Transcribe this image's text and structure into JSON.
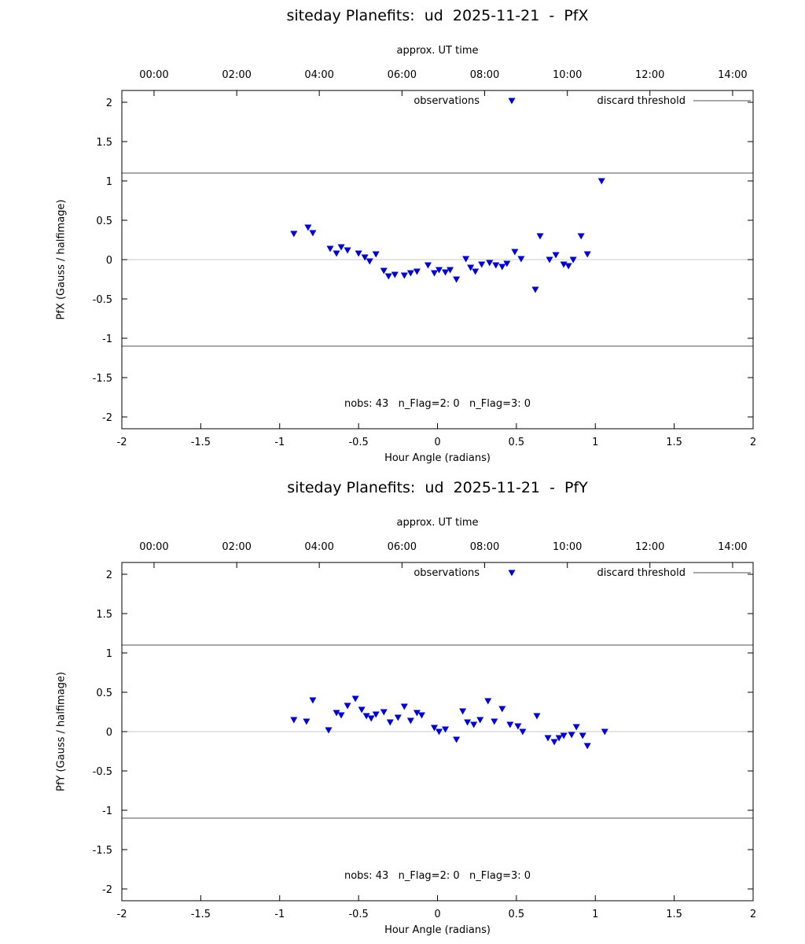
{
  "page": {
    "background": "#ffffff"
  },
  "chart_data": [
    {
      "type": "scatter",
      "title": "siteday Planefits:  ud  2025-11-21  -  PfX",
      "x2label": "approx. UT time",
      "xlabel": "Hour Angle (radians)",
      "ylabel": "PfX (Gauss / halfimage)",
      "xlim": [
        -2,
        2
      ],
      "ylim": [
        -2.15,
        2.15
      ],
      "x_ticks": [
        -2,
        -1.5,
        -1,
        -0.5,
        0,
        0.5,
        1,
        1.5,
        2
      ],
      "y_ticks": [
        -2,
        -1.5,
        -1,
        -0.5,
        0,
        0.5,
        1,
        1.5,
        2
      ],
      "ut_ticks": [
        {
          "label": "00:00",
          "ha": -1.796
        },
        {
          "label": "02:00",
          "ha": -1.272
        },
        {
          "label": "04:00",
          "ha": -0.749
        },
        {
          "label": "06:00",
          "ha": -0.225
        },
        {
          "label": "08:00",
          "ha": 0.299
        },
        {
          "label": "10:00",
          "ha": 0.823
        },
        {
          "label": "12:00",
          "ha": 1.346
        },
        {
          "label": "14:00",
          "ha": 1.87
        }
      ],
      "legend": {
        "observations_label": "observations",
        "threshold_label": "discard threshold"
      },
      "discard_threshold": 1.1,
      "annotation": "nobs: 43   n_Flag=2: 0   n_Flag=3: 0",
      "marker_color": "#0000cc",
      "threshold_color": "#a8a8a8",
      "zero_line_color": "#c8c8c8",
      "points": [
        [
          -0.91,
          0.33
        ],
        [
          -0.82,
          0.41
        ],
        [
          -0.79,
          0.34
        ],
        [
          -0.68,
          0.14
        ],
        [
          -0.64,
          0.08
        ],
        [
          -0.61,
          0.16
        ],
        [
          -0.57,
          0.12
        ],
        [
          -0.5,
          0.08
        ],
        [
          -0.46,
          0.03
        ],
        [
          -0.43,
          -0.02
        ],
        [
          -0.39,
          0.07
        ],
        [
          -0.34,
          -0.14
        ],
        [
          -0.31,
          -0.21
        ],
        [
          -0.27,
          -0.19
        ],
        [
          -0.21,
          -0.2
        ],
        [
          -0.17,
          -0.17
        ],
        [
          -0.13,
          -0.15
        ],
        [
          -0.06,
          -0.07
        ],
        [
          -0.02,
          -0.17
        ],
        [
          0.01,
          -0.13
        ],
        [
          0.05,
          -0.16
        ],
        [
          0.08,
          -0.13
        ],
        [
          0.12,
          -0.25
        ],
        [
          0.18,
          0.01
        ],
        [
          0.21,
          -0.1
        ],
        [
          0.24,
          -0.15
        ],
        [
          0.28,
          -0.06
        ],
        [
          0.33,
          -0.04
        ],
        [
          0.37,
          -0.07
        ],
        [
          0.41,
          -0.09
        ],
        [
          0.44,
          -0.05
        ],
        [
          0.49,
          0.1
        ],
        [
          0.53,
          0.01
        ],
        [
          0.62,
          -0.38
        ],
        [
          0.65,
          0.3
        ],
        [
          0.71,
          0.0
        ],
        [
          0.75,
          0.06
        ],
        [
          0.8,
          -0.06
        ],
        [
          0.83,
          -0.08
        ],
        [
          0.86,
          0.0
        ],
        [
          0.91,
          0.3
        ],
        [
          0.95,
          0.07
        ],
        [
          1.04,
          1.0
        ]
      ]
    },
    {
      "type": "scatter",
      "title": "siteday Planefits:  ud  2025-11-21  -  PfY",
      "x2label": "approx. UT time",
      "xlabel": "Hour Angle (radians)",
      "ylabel": "PfY (Gauss / halfimage)",
      "xlim": [
        -2,
        2
      ],
      "ylim": [
        -2.15,
        2.15
      ],
      "x_ticks": [
        -2,
        -1.5,
        -1,
        -0.5,
        0,
        0.5,
        1,
        1.5,
        2
      ],
      "y_ticks": [
        -2,
        -1.5,
        -1,
        -0.5,
        0,
        0.5,
        1,
        1.5,
        2
      ],
      "ut_ticks": [
        {
          "label": "00:00",
          "ha": -1.796
        },
        {
          "label": "02:00",
          "ha": -1.272
        },
        {
          "label": "04:00",
          "ha": -0.749
        },
        {
          "label": "06:00",
          "ha": -0.225
        },
        {
          "label": "08:00",
          "ha": 0.299
        },
        {
          "label": "10:00",
          "ha": 0.823
        },
        {
          "label": "12:00",
          "ha": 1.346
        },
        {
          "label": "14:00",
          "ha": 1.87
        }
      ],
      "legend": {
        "observations_label": "observations",
        "threshold_label": "discard threshold"
      },
      "discard_threshold": 1.1,
      "annotation": "nobs: 43   n_Flag=2: 0   n_Flag=3: 0",
      "marker_color": "#0000cc",
      "threshold_color": "#a8a8a8",
      "zero_line_color": "#c8c8c8",
      "points": [
        [
          -0.91,
          0.15
        ],
        [
          -0.83,
          0.13
        ],
        [
          -0.79,
          0.4
        ],
        [
          -0.69,
          0.02
        ],
        [
          -0.64,
          0.24
        ],
        [
          -0.61,
          0.21
        ],
        [
          -0.57,
          0.33
        ],
        [
          -0.52,
          0.42
        ],
        [
          -0.48,
          0.28
        ],
        [
          -0.45,
          0.2
        ],
        [
          -0.42,
          0.17
        ],
        [
          -0.39,
          0.22
        ],
        [
          -0.34,
          0.25
        ],
        [
          -0.3,
          0.12
        ],
        [
          -0.25,
          0.18
        ],
        [
          -0.21,
          0.32
        ],
        [
          -0.17,
          0.14
        ],
        [
          -0.13,
          0.24
        ],
        [
          -0.1,
          0.21
        ],
        [
          -0.02,
          0.05
        ],
        [
          0.01,
          0.0
        ],
        [
          0.05,
          0.03
        ],
        [
          0.12,
          -0.1
        ],
        [
          0.16,
          0.26
        ],
        [
          0.19,
          0.12
        ],
        [
          0.23,
          0.09
        ],
        [
          0.27,
          0.15
        ],
        [
          0.32,
          0.39
        ],
        [
          0.36,
          0.13
        ],
        [
          0.41,
          0.29
        ],
        [
          0.46,
          0.09
        ],
        [
          0.51,
          0.07
        ],
        [
          0.54,
          0.0
        ],
        [
          0.63,
          0.2
        ],
        [
          0.7,
          -0.08
        ],
        [
          0.74,
          -0.13
        ],
        [
          0.77,
          -0.08
        ],
        [
          0.8,
          -0.05
        ],
        [
          0.85,
          -0.04
        ],
        [
          0.88,
          0.06
        ],
        [
          0.92,
          -0.05
        ],
        [
          0.95,
          -0.18
        ],
        [
          1.06,
          0.0
        ]
      ]
    }
  ]
}
